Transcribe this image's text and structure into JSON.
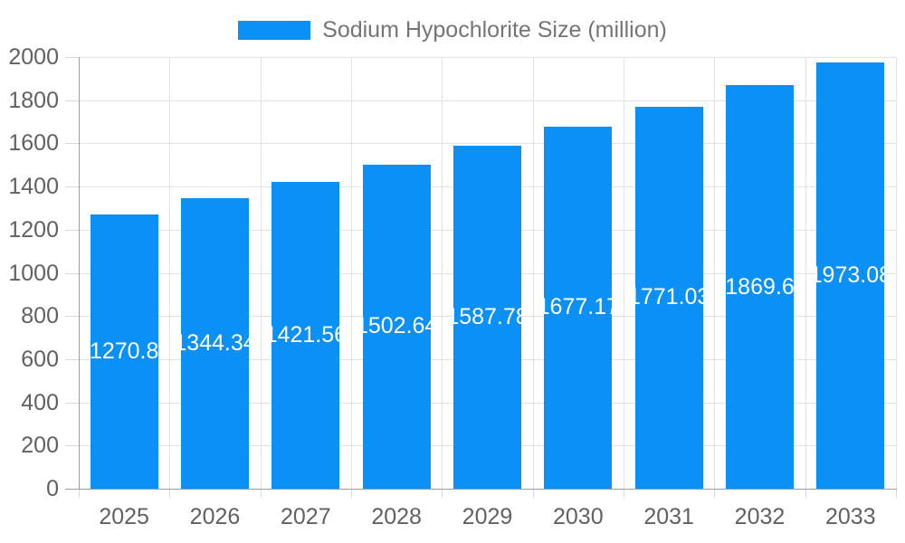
{
  "legend": {
    "label": "Sodium Hypochlorite Size (million)"
  },
  "colors": {
    "bar": "#0b90f5",
    "grid": "#e2e2e2",
    "tick": "#d9d9d9",
    "axis_line": "#9e9e9e",
    "axis_label": "#616161",
    "legend_text": "#757575",
    "bar_label": "#ffffff",
    "background": "#ffffff"
  },
  "chart_data": {
    "type": "bar",
    "title": "",
    "categories": [
      "2025",
      "2026",
      "2027",
      "2028",
      "2029",
      "2030",
      "2031",
      "2032",
      "2033"
    ],
    "series": [
      {
        "name": "Sodium Hypochlorite Size (million)",
        "values": [
          1270.8,
          1344.34,
          1421.56,
          1502.64,
          1587.78,
          1677.17,
          1771.03,
          1869.6,
          1973.08
        ]
      }
    ],
    "bar_labels": [
      "1270.8",
      "1344.34",
      "1421.56",
      "1502.64",
      "1587.78",
      "1677.17",
      "1771.03",
      "1869.6",
      "1973.08"
    ],
    "yticks": [
      "0",
      "200",
      "400",
      "600",
      "800",
      "1000",
      "1200",
      "1400",
      "1600",
      "1800",
      "2000"
    ],
    "ylim": [
      0,
      2000
    ],
    "xlabel": "",
    "ylabel": "",
    "grid": true,
    "legend_position": "top-center",
    "value_labels_inside_bars": true
  }
}
